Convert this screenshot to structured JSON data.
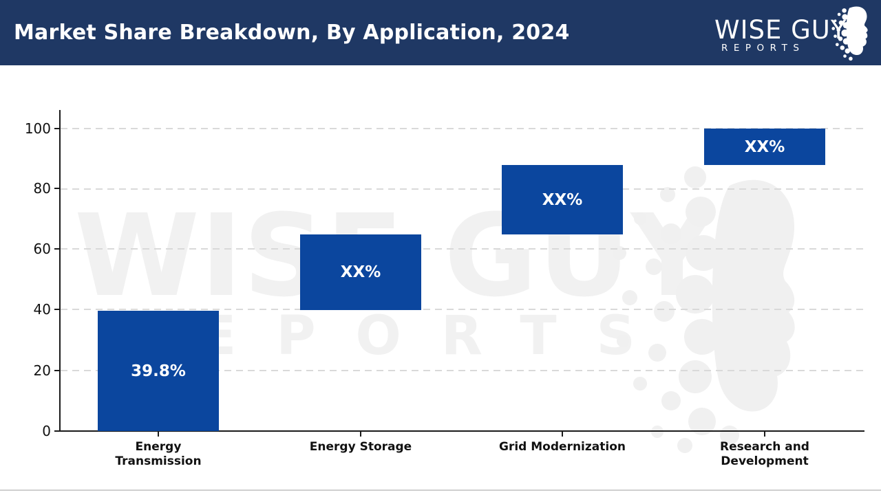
{
  "header": {
    "title": "Market Share Breakdown, By Application, 2024",
    "bg_color": "#1f3864",
    "logo": {
      "name": "WISE GUY",
      "sub": "REPORTS"
    }
  },
  "watermark": {
    "line1": "WISE GUY",
    "line2": "REPORTS"
  },
  "chart_data": {
    "type": "bar",
    "subtype": "floating-waterfall",
    "title": "Market Share Breakdown, By Application, 2024",
    "categories": [
      "Energy\nTransmission",
      "Energy Storage",
      "Grid Modernization",
      "Research and\nDevelopment"
    ],
    "bars": [
      {
        "category": "Energy Transmission",
        "label": "39.8%",
        "start": 0,
        "end": 39.8
      },
      {
        "category": "Energy Storage",
        "label": "XX%",
        "start": 40,
        "end": 65
      },
      {
        "category": "Grid Modernization",
        "label": "XX%",
        "start": 65,
        "end": 88
      },
      {
        "category": "Research and Development",
        "label": "XX%",
        "start": 88,
        "end": 100
      }
    ],
    "yticks": [
      0,
      20,
      40,
      60,
      80,
      100
    ],
    "ylim": [
      0,
      106
    ],
    "xlabel": "",
    "ylabel": "",
    "grid": "horizontal dashed",
    "legend": "none",
    "bar_color": "#0b469e",
    "bar_label_color": "#ffffff"
  }
}
